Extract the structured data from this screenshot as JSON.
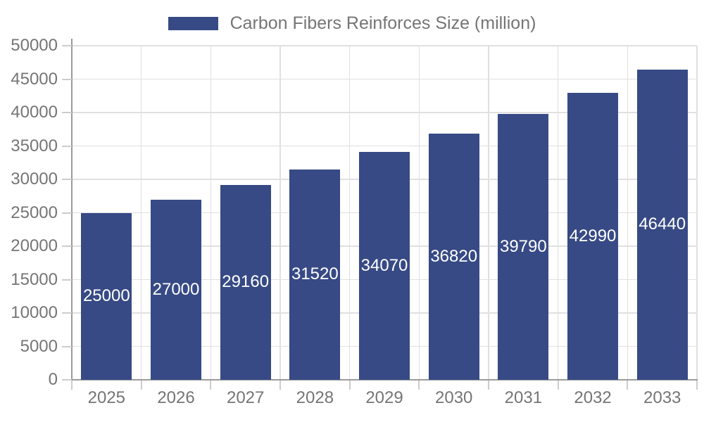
{
  "legend": {
    "label": "Carbon Fibers Reinforces Size (million)"
  },
  "colors": {
    "bar": "#374a85",
    "axis_line": "#9a9a9a",
    "grid_line": "#e0e0e0",
    "tick": "#cccccc",
    "label_text": "#757575",
    "value_label": "#ffffff",
    "background": "#ffffff"
  },
  "chart_data": {
    "type": "bar",
    "title": "Carbon Fibers Reinforces Size (million)",
    "categories": [
      "2025",
      "2026",
      "2027",
      "2028",
      "2029",
      "2030",
      "2031",
      "2032",
      "2033"
    ],
    "series": [
      {
        "name": "Carbon Fibers Reinforces Size (million)",
        "values": [
          25000,
          27000,
          29160,
          31520,
          34070,
          36820,
          39790,
          42990,
          46440
        ]
      }
    ],
    "yticks": [
      0,
      5000,
      10000,
      15000,
      20000,
      25000,
      30000,
      35000,
      40000,
      45000,
      50000
    ],
    "ylim": [
      0,
      50000
    ],
    "xlabel": "",
    "ylabel": "",
    "grid": true,
    "legend_position": "top-center",
    "bar_value_labels": "inside-center"
  }
}
